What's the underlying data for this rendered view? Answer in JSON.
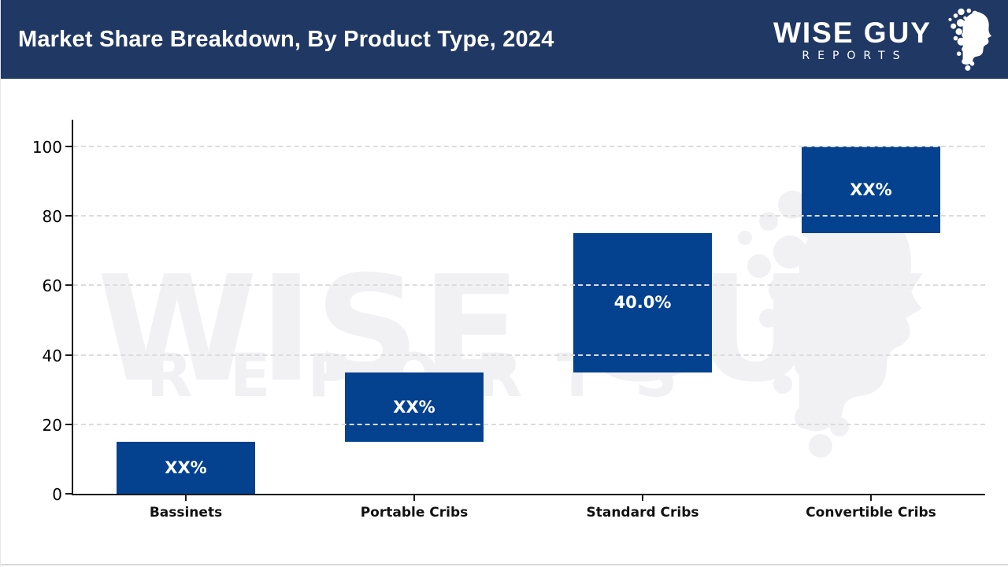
{
  "header": {
    "title": "Market Share Breakdown, By Product Type, 2024",
    "logo": {
      "line1": "WISE GUY",
      "line2": "REPORTS"
    }
  },
  "watermark": {
    "line1": "WISE GUY",
    "line2": "REPORTS"
  },
  "chart_data": {
    "type": "bar",
    "variant": "floating-segment-waterfall",
    "title": "Market Share Breakdown, By Product Type, 2024",
    "categories": [
      "Bassinets",
      "Portable Cribs",
      "Standard Cribs",
      "Convertible Cribs"
    ],
    "segments": [
      {
        "category": "Bassinets",
        "from": 0,
        "to": 15,
        "label": "XX%"
      },
      {
        "category": "Portable Cribs",
        "from": 15,
        "to": 35,
        "label": "XX%"
      },
      {
        "category": "Standard Cribs",
        "from": 35,
        "to": 75,
        "label": "40.0%"
      },
      {
        "category": "Convertible Cribs",
        "from": 75,
        "to": 100,
        "label": "XX%"
      }
    ],
    "xlabel": "",
    "ylabel": "",
    "yticks": [
      0,
      20,
      40,
      60,
      80,
      100
    ],
    "ylim": [
      0,
      107
    ],
    "grid": {
      "horizontal": true,
      "style": "dashed",
      "drawn_above_bars": true
    },
    "legend": "none",
    "colors": {
      "bar": "#04418f",
      "bar_label": "#ffffff",
      "header_background": "#203864",
      "gridline": "#dcdcdc",
      "axis": "#1c1c1c",
      "watermark": "#f1f1f4"
    }
  }
}
